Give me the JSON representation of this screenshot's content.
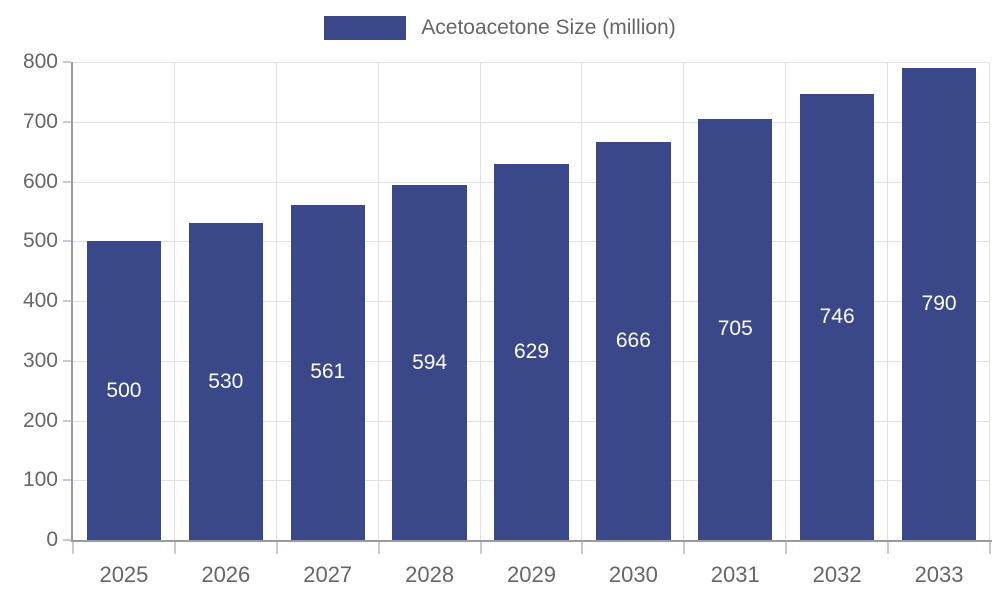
{
  "legend": {
    "label": "Acetoacetone Size (million)"
  },
  "colors": {
    "bar": "#3a488a",
    "grid": "#e2e2e6",
    "axis": "#9a9a9a",
    "tick": "#c5cada",
    "text": "#666666",
    "value_label": "#ffffff",
    "background": "#ffffff"
  },
  "chart_data": {
    "type": "bar",
    "categories": [
      "2025",
      "2026",
      "2027",
      "2028",
      "2029",
      "2030",
      "2031",
      "2032",
      "2033"
    ],
    "values": [
      500,
      530,
      561,
      594,
      629,
      666,
      705,
      746,
      790
    ],
    "title": "",
    "legend": "Acetoacetone Size (million)",
    "xlabel": "",
    "ylabel": "",
    "ylim": [
      0,
      800
    ],
    "yticks": [
      0,
      100,
      200,
      300,
      400,
      500,
      600,
      700,
      800
    ],
    "grid": true,
    "legend_position": "top-center",
    "bar_labels": "inside-center",
    "bar_width_fraction": 0.73
  }
}
